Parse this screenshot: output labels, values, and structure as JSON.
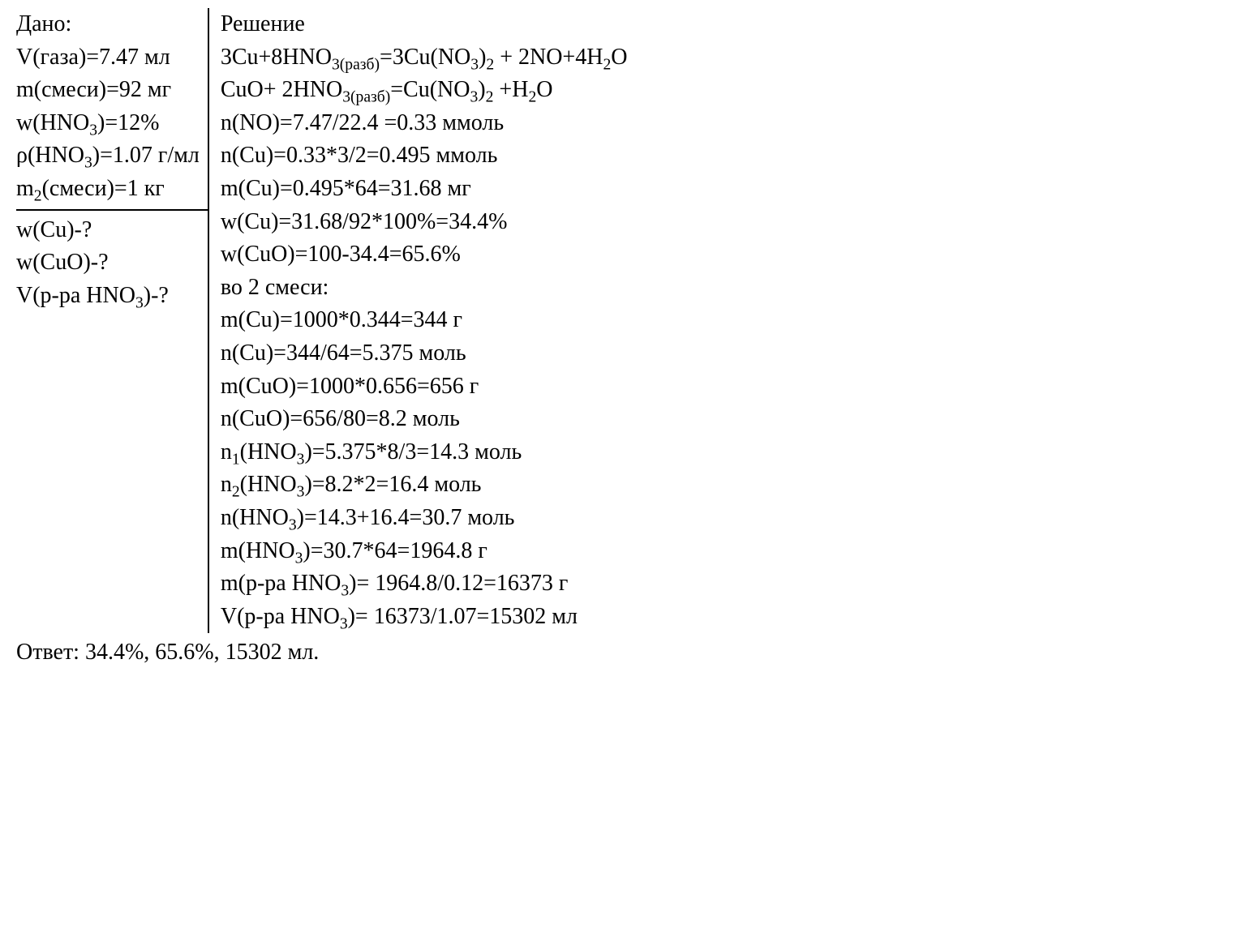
{
  "given": {
    "title": "Дано:",
    "lines_top": [
      "V(газа)=7.47 мл",
      "m(смеси)=92 мг",
      "w(HNO<sub>3</sub>)=12%",
      "ρ(HNO<sub>3</sub>)=1.07 г/мл",
      "m<sub>2</sub>(смеси)=1 кг"
    ],
    "lines_bottom": [
      "w(Cu)-?",
      "w(CuO)-?",
      "V(р-ра HNO<sub>3</sub>)-?"
    ]
  },
  "solution": {
    "title": "Решение",
    "lines": [
      "3Cu+8HNO<sub>3(разб)</sub>=3Cu(NO<sub>3</sub>)<sub>2</sub> + 2NO+4H<sub>2</sub>O",
      "CuO+ 2HNO<sub>3(разб)</sub>=Cu(NO<sub>3</sub>)<sub>2</sub> +H<sub>2</sub>O",
      "n(NO)=7.47/22.4 =0.33 ммоль",
      "n(Cu)=0.33*3/2=0.495 ммоль",
      "m(Cu)=0.495*64=31.68 мг",
      "w(Cu)=31.68/92*100%=34.4%",
      "w(CuO)=100-34.4=65.6%",
      "во 2 смеси:",
      "m(Cu)=1000*0.344=344 г",
      "n(Cu)=344/64=5.375 моль",
      "m(CuO)=1000*0.656=656 г",
      "n(CuO)=656/80=8.2 моль",
      "n<sub>1</sub>(HNO<sub>3</sub>)=5.375*8/3=14.3 моль",
      "n<sub>2</sub>(HNO<sub>3</sub>)=8.2*2=16.4 моль",
      "n(HNO<sub>3</sub>)=14.3+16.4=30.7 моль",
      "m(HNO<sub>3</sub>)=30.7*64=1964.8 г",
      "m(р-ра HNO<sub>3</sub>)= 1964.8/0.12=16373 г",
      "V(р-ра HNO<sub>3</sub>)= 16373/1.07=15302 мл"
    ]
  },
  "answer": "Ответ: 34.4%, 65.6%, 15302 мл."
}
